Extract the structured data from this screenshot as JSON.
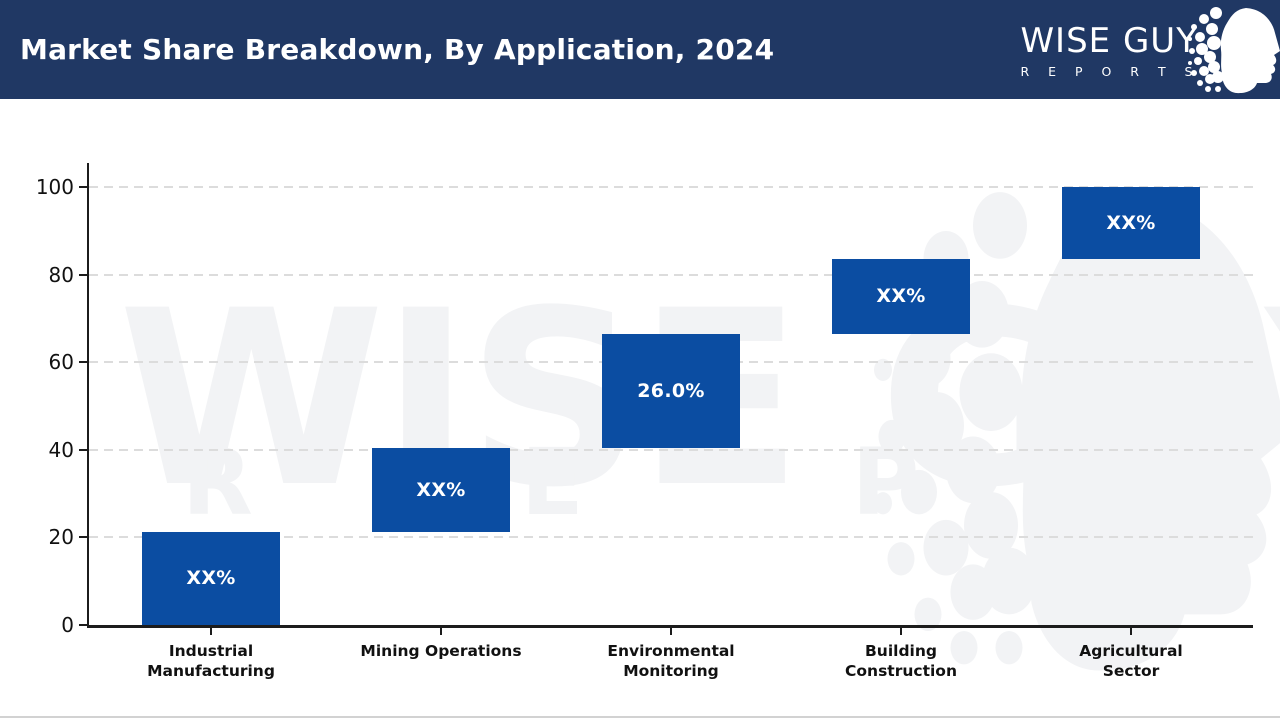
{
  "header": {
    "title": "Market Share Breakdown, By Application, 2024",
    "logo_line1": "WISE GUY",
    "logo_line2": "R E P O R T S"
  },
  "watermark": {
    "line1": "WISE GUY",
    "line2": "R E P O R T S"
  },
  "colors": {
    "header_bg": "#203864",
    "bar": "#0b4da2",
    "bar_label": "#ffffff",
    "gridline": "#dcdcdc",
    "axis": "#1c1c1c",
    "watermark": "#f2f3f5",
    "footer_line": "#d2d2d2"
  },
  "chart_data": {
    "type": "bar",
    "subtype": "waterfall",
    "title": "Market Share Breakdown, By Application, 2024",
    "categories": [
      [
        "Industrial",
        "Manufacturing"
      ],
      [
        "Mining Operations"
      ],
      [
        "Environmental",
        "Monitoring"
      ],
      [
        "Building",
        "Construction"
      ],
      [
        "Agricultural",
        "Sector"
      ]
    ],
    "segments": [
      {
        "category": "Industrial Manufacturing",
        "start": 0,
        "end": 21.3,
        "label": "XX%"
      },
      {
        "category": "Mining Operations",
        "start": 21.3,
        "end": 40.4,
        "label": "XX%"
      },
      {
        "category": "Environmental Monitoring",
        "start": 40.4,
        "end": 66.4,
        "label": "26.0%",
        "value": 26.0
      },
      {
        "category": "Building Construction",
        "start": 66.4,
        "end": 83.6,
        "label": "XX%"
      },
      {
        "category": "Agricultural Sector",
        "start": 83.6,
        "end": 100,
        "label": "XX%"
      }
    ],
    "y_ticks": [
      0,
      20,
      40,
      60,
      80,
      100
    ],
    "ylim": [
      0,
      105
    ],
    "xlabel": "",
    "ylabel": "",
    "grid": "horizontal-dashed",
    "legend": "none"
  }
}
